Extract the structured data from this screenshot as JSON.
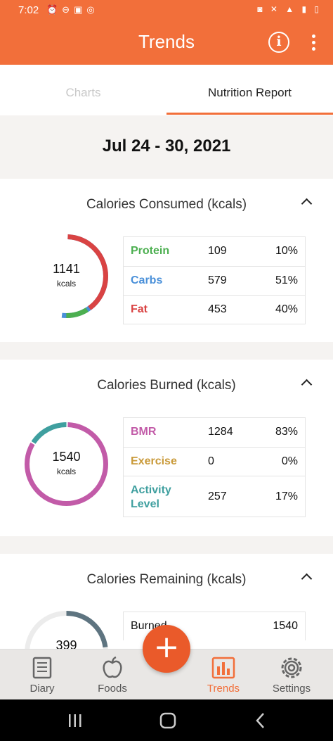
{
  "status_bar": {
    "time": "7:02"
  },
  "app_bar": {
    "title": "Trends",
    "info_icon": "info-icon",
    "more_icon": "more-vertical-icon"
  },
  "tabs": [
    {
      "label": "Charts",
      "active": false
    },
    {
      "label": "Nutrition Report",
      "active": true
    }
  ],
  "date_range": "Jul 24 - 30, 2021",
  "calories_consumed": {
    "title": "Calories Consumed (kcals)",
    "total": "1141",
    "unit": "kcals",
    "rows": [
      {
        "label": "Protein",
        "value": "109",
        "percent": "10%",
        "color": "#4caf50"
      },
      {
        "label": "Carbs",
        "value": "579",
        "percent": "51%",
        "color": "#4a90d9"
      },
      {
        "label": "Fat",
        "value": "453",
        "percent": "40%",
        "color": "#d94343"
      }
    ]
  },
  "calories_burned": {
    "title": "Calories Burned (kcals)",
    "total": "1540",
    "unit": "kcals",
    "rows": [
      {
        "label": "BMR",
        "value": "1284",
        "percent": "83%",
        "color": "#c25ba8"
      },
      {
        "label": "Exercise",
        "value": "0",
        "percent": "0%",
        "color": "#c99a3a"
      },
      {
        "label": "Activity Level",
        "value": "257",
        "percent": "17%",
        "color": "#3f9f9f"
      }
    ]
  },
  "calories_remaining": {
    "title": "Calories Remaining (kcals)",
    "total": "399",
    "rows": [
      {
        "label": "Burned",
        "value": "1540"
      }
    ]
  },
  "fab": {
    "label": "+"
  },
  "bottom_nav": [
    {
      "label": "Diary",
      "icon": "diary-icon",
      "active": false
    },
    {
      "label": "Foods",
      "icon": "apple-icon",
      "active": false
    },
    {
      "label": "Trends",
      "icon": "bar-chart-icon",
      "active": true
    },
    {
      "label": "Settings",
      "icon": "gear-icon",
      "active": false
    }
  ],
  "colors": {
    "accent": "#f26f3a",
    "fab": "#ea5a2a"
  }
}
